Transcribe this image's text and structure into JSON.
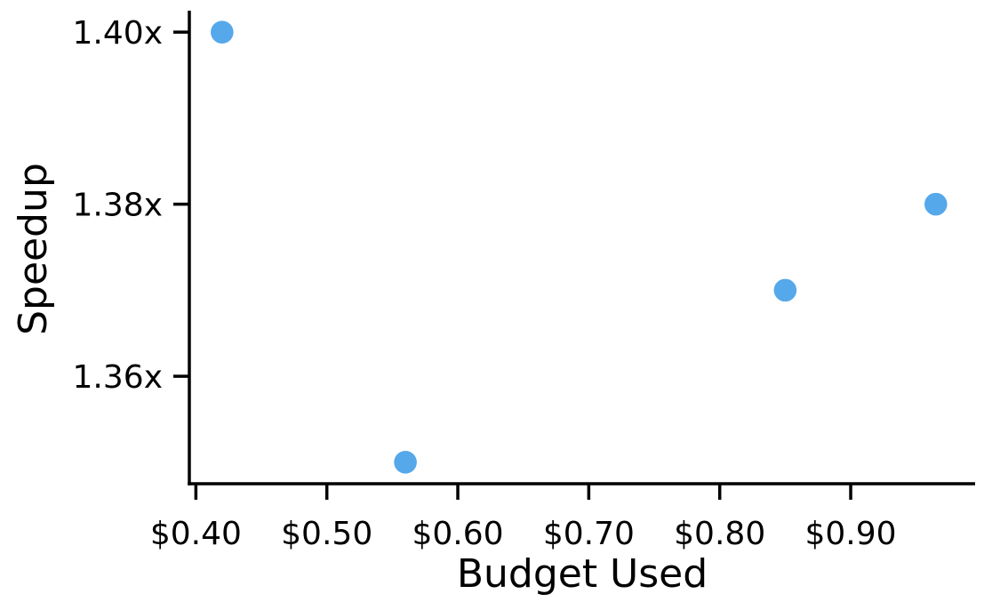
{
  "chart_data": {
    "type": "scatter",
    "title": "",
    "xlabel": "Budget Used",
    "ylabel": "Speedup",
    "points": [
      {
        "x": 0.42,
        "y": 1.4
      },
      {
        "x": 0.56,
        "y": 1.35
      },
      {
        "x": 0.85,
        "y": 1.37
      },
      {
        "x": 0.965,
        "y": 1.38
      }
    ],
    "xlim": [
      0.395,
      0.995
    ],
    "ylim": [
      1.3475,
      1.4025
    ],
    "x_ticks": [
      0.4,
      0.5,
      0.6,
      0.7,
      0.8,
      0.9
    ],
    "x_tick_labels": [
      "$0.40",
      "$0.50",
      "$0.60",
      "$0.70",
      "$0.80",
      "$0.90"
    ],
    "y_ticks": [
      1.36,
      1.38,
      1.4
    ],
    "y_tick_labels": [
      "1.36x",
      "1.38x",
      "1.40x"
    ],
    "grid": false,
    "legend": null,
    "marker_color": "#55A8EA",
    "marker_radius": 12.8,
    "axis_color": "#000000",
    "spines": {
      "top": false,
      "right": false,
      "left": true,
      "bottom": true
    }
  }
}
